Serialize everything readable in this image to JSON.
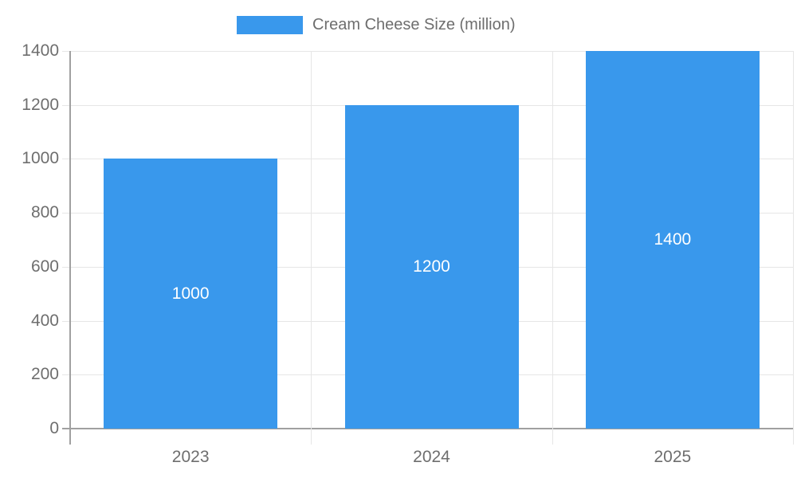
{
  "chart_data": {
    "type": "bar",
    "title": "",
    "xlabel": "",
    "ylabel": "",
    "categories": [
      "2023",
      "2024",
      "2025"
    ],
    "series": [
      {
        "name": "Cream Cheese Size (million)",
        "values": [
          1000,
          1200,
          1400
        ],
        "data_labels": [
          "1000",
          "1200",
          "1400"
        ]
      }
    ],
    "ylim": [
      0,
      1400
    ],
    "yticks": [
      0,
      200,
      400,
      600,
      800,
      1000,
      1200,
      1400
    ],
    "ytick_labels": [
      "0",
      "200",
      "400",
      "600",
      "800",
      "1000",
      "1200",
      "1400"
    ],
    "grid": "on",
    "legend_position": "top"
  },
  "colors": {
    "bar": "#3998ec",
    "bar_label": "#ffffff",
    "axis_text": "#6e6e6e",
    "grid_line": "#e6e6e6",
    "axis_line": "#a0a0a0"
  }
}
